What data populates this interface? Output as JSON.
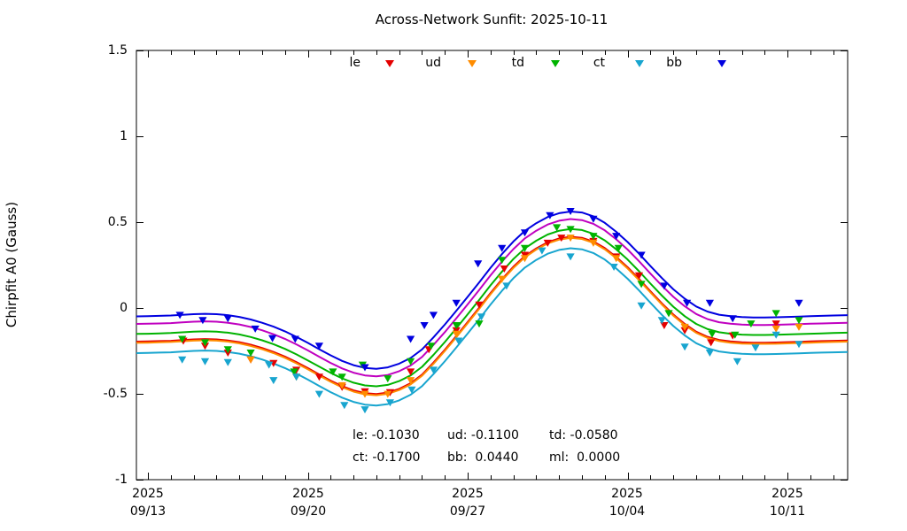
{
  "title": "Across-Network Sunfit: 2025-10-11",
  "legend": {
    "position": "top-inside",
    "items": [
      {
        "label": "le",
        "color": "#e40000"
      },
      {
        "label": "ud",
        "color": "#ff8c00"
      },
      {
        "label": "td",
        "color": "#00b300"
      },
      {
        "label": "ct",
        "color": "#18a5cf"
      },
      {
        "label": "bb",
        "color": "#0000e0"
      }
    ]
  },
  "annotation": {
    "row1": [
      "le: -0.1030",
      "ud: -0.1100",
      "td: -0.0580"
    ],
    "row2": [
      "ct: -0.1700",
      "bb:  0.0440",
      "ml:  0.0000"
    ]
  },
  "chart_data": {
    "type": "line+scatter",
    "title": "Across-Network Sunfit: 2025-10-11",
    "xlabel": "",
    "ylabel": "Chirpfit A0 (Gauss)",
    "ylim": [
      -1,
      1.5
    ],
    "grid": false,
    "y_axis": {
      "ticks": [
        1.5,
        1,
        0.5,
        0,
        -0.5,
        -1
      ],
      "tick_labels": [
        "1.5",
        "1",
        "0.5",
        "0",
        "-0.5",
        "-1"
      ]
    },
    "x_axis": {
      "unit": "date",
      "start_date": "2025-09-13",
      "visible_day_range": [
        -0.5,
        30.6
      ],
      "minor_tick_every_days": 1,
      "major_ticks": [
        {
          "day": 0,
          "line1": "2025",
          "line2": "09/13"
        },
        {
          "day": 7,
          "line1": "2025",
          "line2": "09/20"
        },
        {
          "day": 14,
          "line1": "2025",
          "line2": "09/27"
        },
        {
          "day": 21,
          "line1": "2025",
          "line2": "10/04"
        },
        {
          "day": 28,
          "line1": "2025",
          "line2": "10/11"
        }
      ]
    },
    "model_curve": {
      "name": "ml",
      "comment": "baseline chirp-fit curve (magenta); each network curve = this shape + its offset (Gauss)",
      "points": [
        [
          -0.55,
          -0.093
        ],
        [
          0,
          -0.092
        ],
        [
          0.5,
          -0.09
        ],
        [
          1,
          -0.088
        ],
        [
          1.5,
          -0.084
        ],
        [
          2,
          -0.08
        ],
        [
          2.5,
          -0.078
        ],
        [
          3,
          -0.08
        ],
        [
          3.5,
          -0.086
        ],
        [
          4,
          -0.096
        ],
        [
          4.5,
          -0.111
        ],
        [
          5,
          -0.13
        ],
        [
          5.5,
          -0.153
        ],
        [
          6,
          -0.18
        ],
        [
          6.5,
          -0.212
        ],
        [
          7,
          -0.247
        ],
        [
          7.5,
          -0.284
        ],
        [
          8,
          -0.32
        ],
        [
          8.5,
          -0.352
        ],
        [
          9,
          -0.377
        ],
        [
          9.5,
          -0.393
        ],
        [
          10,
          -0.398
        ],
        [
          10.5,
          -0.39
        ],
        [
          11,
          -0.368
        ],
        [
          11.5,
          -0.335
        ],
        [
          12,
          -0.285
        ],
        [
          12.5,
          -0.215
        ],
        [
          13,
          -0.14
        ],
        [
          13.5,
          -0.06
        ],
        [
          14,
          0.022
        ],
        [
          14.5,
          0.105
        ],
        [
          15,
          0.19
        ],
        [
          15.5,
          0.27
        ],
        [
          16,
          0.343
        ],
        [
          16.5,
          0.405
        ],
        [
          17,
          0.45
        ],
        [
          17.5,
          0.486
        ],
        [
          18,
          0.508
        ],
        [
          18.5,
          0.518
        ],
        [
          19,
          0.512
        ],
        [
          19.5,
          0.49
        ],
        [
          20,
          0.452
        ],
        [
          20.5,
          0.4
        ],
        [
          21,
          0.34
        ],
        [
          21.5,
          0.272
        ],
        [
          22,
          0.2
        ],
        [
          22.5,
          0.13
        ],
        [
          23,
          0.065
        ],
        [
          23.5,
          0.01
        ],
        [
          24,
          -0.035
        ],
        [
          24.5,
          -0.065
        ],
        [
          25,
          -0.083
        ],
        [
          25.5,
          -0.092
        ],
        [
          26,
          -0.097
        ],
        [
          26.5,
          -0.099
        ],
        [
          27,
          -0.099
        ],
        [
          27.5,
          -0.098
        ],
        [
          28,
          -0.096
        ],
        [
          28.5,
          -0.094
        ],
        [
          29,
          -0.092
        ],
        [
          29.5,
          -0.09
        ],
        [
          30,
          -0.088
        ],
        [
          30.65,
          -0.086
        ]
      ]
    },
    "series": [
      {
        "name": "le",
        "color": "#e40000",
        "offset": -0.103,
        "points": [
          [
            1.55,
            -0.19
          ],
          [
            2.5,
            -0.22
          ],
          [
            3.5,
            -0.26
          ],
          [
            4.5,
            -0.3
          ],
          [
            5.5,
            -0.32
          ],
          [
            6.5,
            -0.36
          ],
          [
            7.5,
            -0.4
          ],
          [
            8.5,
            -0.46
          ],
          [
            9.5,
            -0.485
          ],
          [
            10.6,
            -0.49
          ],
          [
            11.5,
            -0.37
          ],
          [
            12.3,
            -0.24
          ],
          [
            13.5,
            -0.13
          ],
          [
            14.5,
            0.02
          ],
          [
            15.6,
            0.23
          ],
          [
            16.5,
            0.31
          ],
          [
            17.5,
            0.38
          ],
          [
            18.1,
            0.41
          ],
          [
            19.5,
            0.39
          ],
          [
            20.5,
            0.3
          ],
          [
            21.5,
            0.19
          ],
          [
            22.6,
            -0.1
          ],
          [
            23.5,
            -0.13
          ],
          [
            24.65,
            -0.2
          ],
          [
            25.6,
            -0.16
          ],
          [
            27.5,
            -0.09
          ]
        ]
      },
      {
        "name": "ud",
        "color": "#ff8c00",
        "offset": -0.11,
        "points": [
          [
            2.5,
            -0.2
          ],
          [
            4.5,
            -0.3
          ],
          [
            6.5,
            -0.4
          ],
          [
            8.5,
            -0.45
          ],
          [
            9.5,
            -0.5
          ],
          [
            10.5,
            -0.5
          ],
          [
            11.5,
            -0.42
          ],
          [
            13.5,
            -0.15
          ],
          [
            15.5,
            0.17
          ],
          [
            16.5,
            0.29
          ],
          [
            18.5,
            0.41
          ],
          [
            19.5,
            0.38
          ],
          [
            20.5,
            0.29
          ],
          [
            23.5,
            -0.11
          ],
          [
            27.5,
            -0.12
          ],
          [
            28.5,
            -0.11
          ]
        ]
      },
      {
        "name": "td",
        "color": "#00b300",
        "offset": -0.058,
        "points": [
          [
            1.5,
            -0.18
          ],
          [
            2.5,
            -0.2
          ],
          [
            3.5,
            -0.24
          ],
          [
            4.5,
            -0.26
          ],
          [
            6.4,
            -0.37
          ],
          [
            8.1,
            -0.37
          ],
          [
            8.5,
            -0.4
          ],
          [
            9.4,
            -0.33
          ],
          [
            10.5,
            -0.41
          ],
          [
            11.5,
            -0.31
          ],
          [
            12.4,
            -0.22
          ],
          [
            13.5,
            -0.1
          ],
          [
            14.5,
            -0.09
          ],
          [
            15.5,
            0.28
          ],
          [
            16.5,
            0.35
          ],
          [
            17.9,
            0.47
          ],
          [
            18.5,
            0.46
          ],
          [
            19.5,
            0.42
          ],
          [
            20.6,
            0.35
          ],
          [
            21.6,
            0.14
          ],
          [
            22.8,
            -0.03
          ],
          [
            24.7,
            -0.15
          ],
          [
            25.7,
            -0.155
          ],
          [
            26.4,
            -0.09
          ],
          [
            27.5,
            -0.03
          ],
          [
            28.5,
            -0.07
          ]
        ]
      },
      {
        "name": "ct",
        "color": "#18a5cf",
        "offset": -0.17,
        "points": [
          [
            1.5,
            -0.3
          ],
          [
            2.5,
            -0.31
          ],
          [
            3.5,
            -0.315
          ],
          [
            5.3,
            -0.33
          ],
          [
            5.5,
            -0.42
          ],
          [
            6.5,
            -0.4
          ],
          [
            7.5,
            -0.5
          ],
          [
            8.6,
            -0.565
          ],
          [
            9.5,
            -0.59
          ],
          [
            10.6,
            -0.55
          ],
          [
            11.55,
            -0.475
          ],
          [
            12.5,
            -0.36
          ],
          [
            13.6,
            -0.19
          ],
          [
            14.6,
            -0.05
          ],
          [
            15.7,
            0.13
          ],
          [
            17.25,
            0.335
          ],
          [
            18.5,
            0.3
          ],
          [
            20.4,
            0.24
          ],
          [
            21.6,
            0.015
          ],
          [
            22.5,
            -0.07
          ],
          [
            23.5,
            -0.225
          ],
          [
            24.6,
            -0.26
          ],
          [
            25.8,
            -0.31
          ],
          [
            26.6,
            -0.23
          ],
          [
            27.5,
            -0.155
          ],
          [
            28.5,
            -0.21
          ]
        ]
      },
      {
        "name": "bb",
        "color": "#0000e0",
        "offset": 0.044,
        "points": [
          [
            1.4,
            -0.04
          ],
          [
            2.4,
            -0.07
          ],
          [
            3.5,
            -0.06
          ],
          [
            4.7,
            -0.12
          ],
          [
            5.45,
            -0.175
          ],
          [
            6.45,
            -0.18
          ],
          [
            7.5,
            -0.22
          ],
          [
            9.5,
            -0.345
          ],
          [
            11.5,
            -0.18
          ],
          [
            12.1,
            -0.1
          ],
          [
            12.5,
            -0.04
          ],
          [
            13.5,
            0.03
          ],
          [
            14.45,
            0.26
          ],
          [
            15.5,
            0.35
          ],
          [
            16.5,
            0.44
          ],
          [
            17.6,
            0.54
          ],
          [
            18.5,
            0.565
          ],
          [
            19.5,
            0.52
          ],
          [
            20.5,
            0.42
          ],
          [
            21.6,
            0.31
          ],
          [
            22.6,
            0.13
          ],
          [
            23.6,
            0.03
          ],
          [
            24.6,
            0.03
          ],
          [
            25.6,
            -0.06
          ],
          [
            28.5,
            0.03
          ]
        ]
      },
      {
        "name": "ml",
        "color": "#c000c0",
        "offset": 0.0,
        "points": []
      }
    ]
  }
}
